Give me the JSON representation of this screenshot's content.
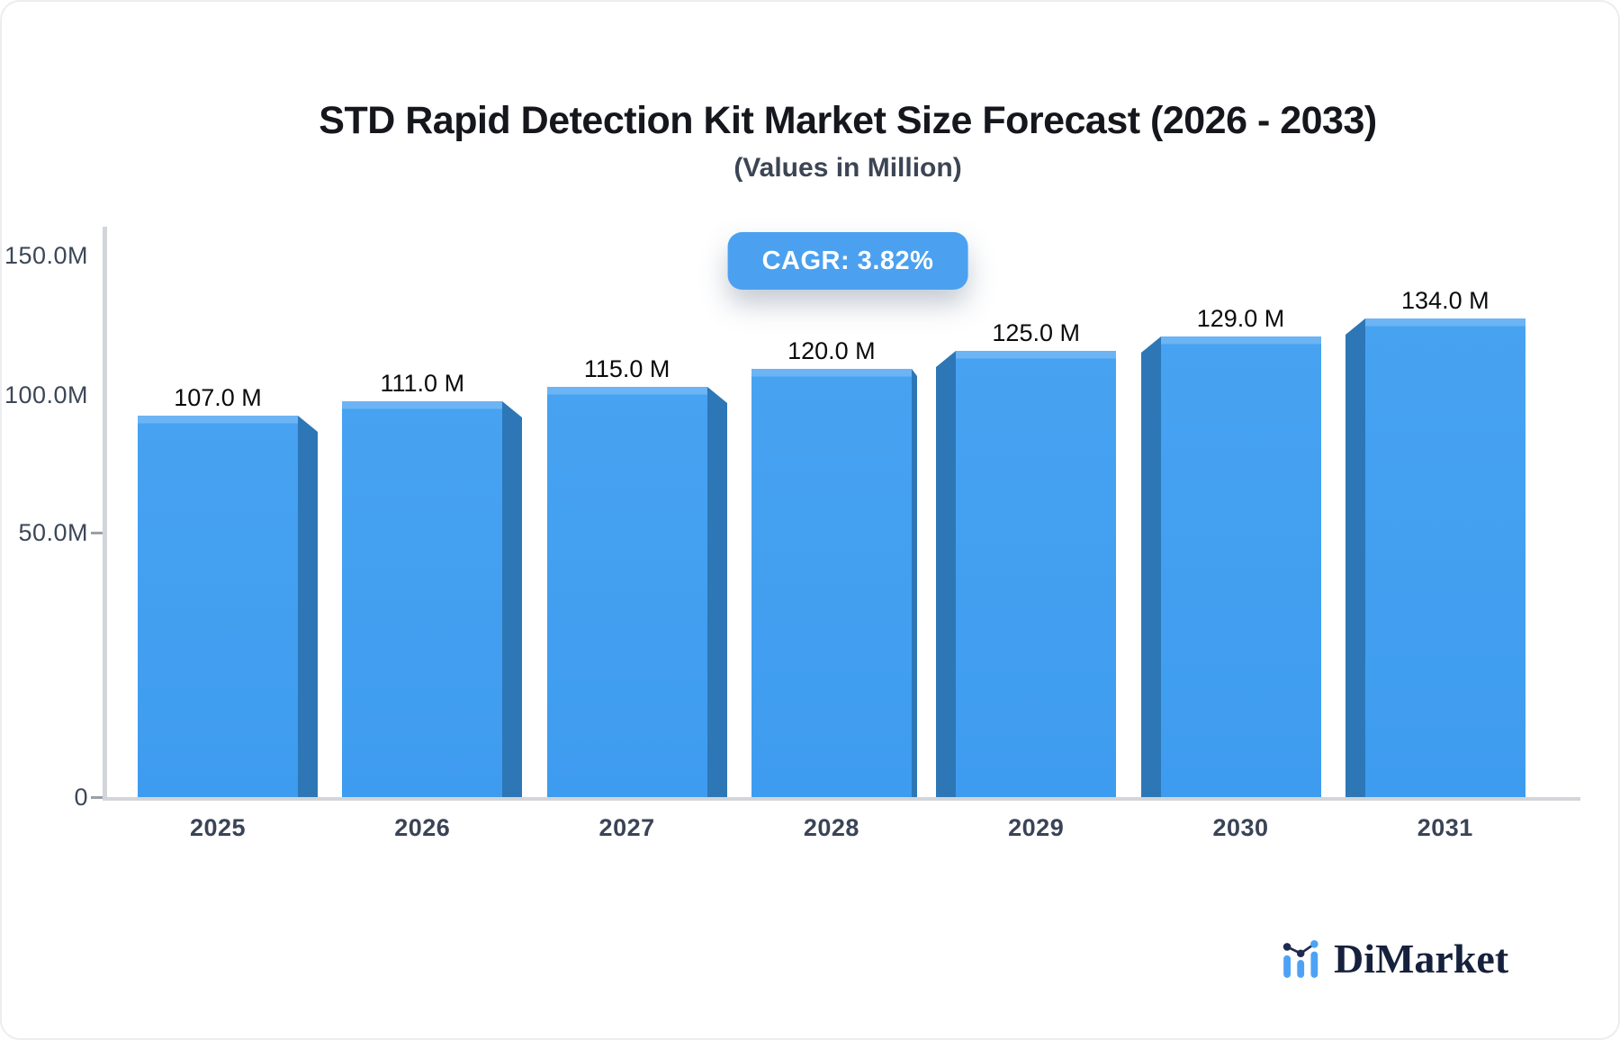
{
  "title": "STD Rapid Detection Kit Market Size Forecast (2026 - 2033)",
  "subtitle": "(Values in Million)",
  "badge": {
    "label": "CAGR: 3.82%"
  },
  "brand": {
    "name": "DiMarket",
    "icon": "bar-chart-logo-icon"
  },
  "colors": {
    "card_border": "#ebedf0",
    "title_text": "#15171d",
    "subtitle_text": "#3c4554",
    "badge_bg": "#4ba1ef",
    "badge_text": "#ffffff",
    "bar_face": "#47a2f1",
    "bar_face_top": "#6cb4f4",
    "bar_face_bottom": "#3e9cf0",
    "bar_side": "#2d77b7",
    "axis_line": "#d2d5d9",
    "tick_text": "#3c4757",
    "tick_dash": "#9aa0a8",
    "value_text": "#0a0b0d",
    "category_text": "#3a4456",
    "logo_text": "#16213d",
    "logo_icon_blue": "#4da2f5",
    "logo_icon_navy": "#1e2b4d"
  },
  "chart_data": {
    "type": "bar",
    "categories": [
      "2025",
      "2026",
      "2027",
      "2028",
      "2029",
      "2030",
      "2031"
    ],
    "values": [
      107.0,
      111.0,
      115.0,
      120.0,
      125.0,
      129.0,
      134.0
    ],
    "value_labels": [
      "107.0 M",
      "111.0 M",
      "115.0 M",
      "120.0 M",
      "125.0 M",
      "129.0 M",
      "134.0 M"
    ],
    "unit": "Million",
    "title": "STD Rapid Detection Kit Market Size Forecast (2026 - 2033)",
    "subtitle": "(Values in Million)",
    "cagr": "3.82%",
    "xlabel": "",
    "ylabel": "",
    "yticks": [
      "150.0M",
      "100.0M",
      "50.0M",
      "0"
    ],
    "ylim": [
      0,
      150
    ],
    "grid": false,
    "legend": false,
    "bar_style": "3d-beveled"
  }
}
